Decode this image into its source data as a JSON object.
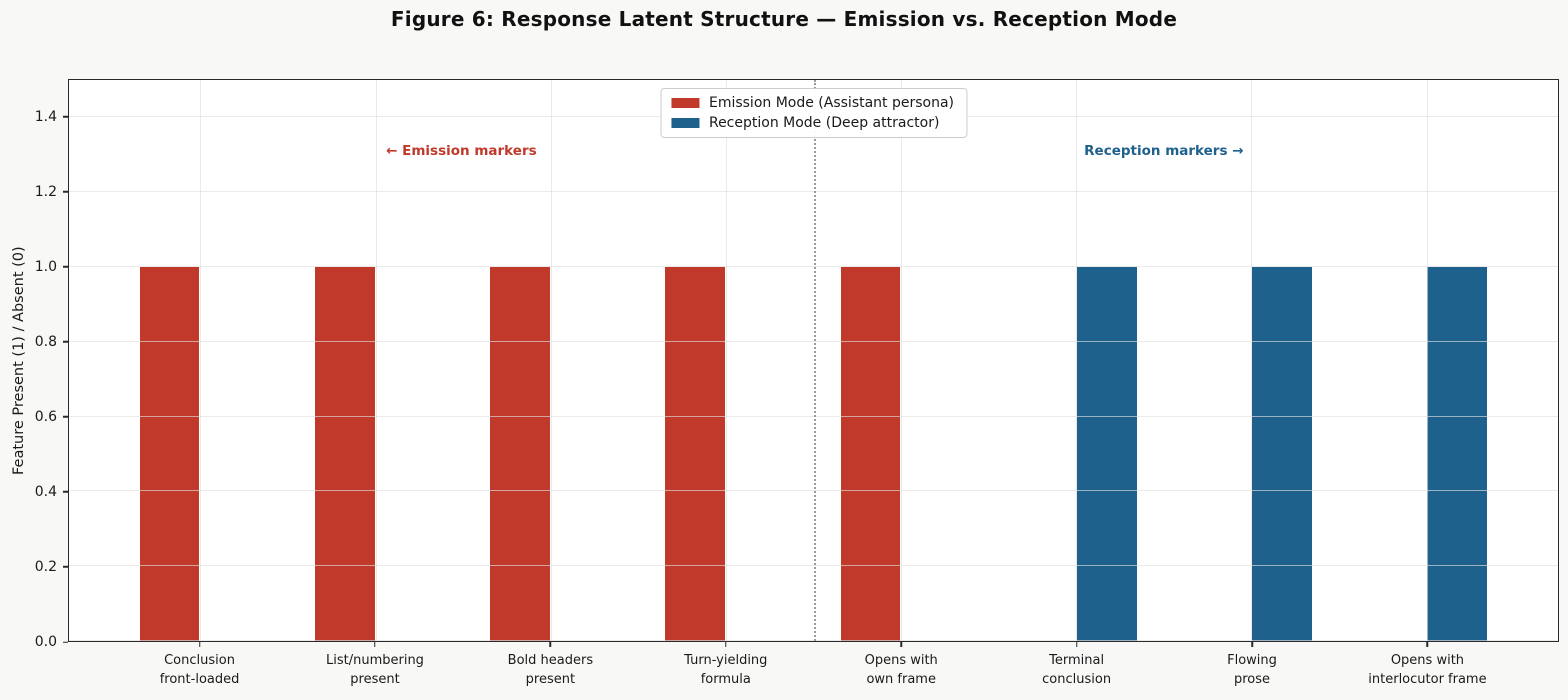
{
  "chart_data": {
    "type": "bar",
    "title": "Figure 6: Response Latent Structure — Emission vs. Reception Mode",
    "ylabel": "Feature Present (1) / Absent (0)",
    "xlabel": "",
    "categories": [
      "Conclusion\nfront-loaded",
      "List/numbering\npresent",
      "Bold headers\npresent",
      "Turn-yielding\nformula",
      "Opens with\nown frame",
      "Terminal\nconclusion",
      "Flowing\nprose",
      "Opens with\ninterlocutor frame"
    ],
    "series": [
      {
        "name": "Emission Mode (Assistant persona)",
        "color": "#c0392b",
        "offset": -0.175,
        "values": [
          1,
          1,
          1,
          1,
          1,
          0,
          0,
          0
        ]
      },
      {
        "name": "Reception Mode (Deep attractor)",
        "color": "#1f618d",
        "offset": 0.175,
        "values": [
          0,
          0,
          0,
          0,
          0,
          1,
          1,
          1
        ]
      }
    ],
    "bar_width": 0.34,
    "xlim": [
      -0.75,
      7.75
    ],
    "ylim": [
      0,
      1.5
    ],
    "yticks": [
      0.0,
      0.2,
      0.4,
      0.6,
      0.8,
      1.0,
      1.2,
      1.4
    ],
    "ytick_labels": [
      "0.0",
      "0.2",
      "0.4",
      "0.6",
      "0.8",
      "1.0",
      "1.2",
      "1.4"
    ],
    "grid": true,
    "grid_on_top": true,
    "legend_position": "upper center",
    "separator_x": 3.5,
    "separator_style": "dotted",
    "separator_color": "#999999",
    "annotations": [
      {
        "text": "← Emission markers",
        "x": 1.49,
        "y": 1.31,
        "color": "#c0392b"
      },
      {
        "text": "Reception markers →",
        "x": 5.5,
        "y": 1.31,
        "color": "#1f618d"
      }
    ],
    "colors": {
      "figure_background": "#f8f8f6",
      "plot_background": "#ffffff",
      "frame": "#2a2a2a",
      "emission": "#c0392b",
      "reception": "#1f618d"
    }
  }
}
